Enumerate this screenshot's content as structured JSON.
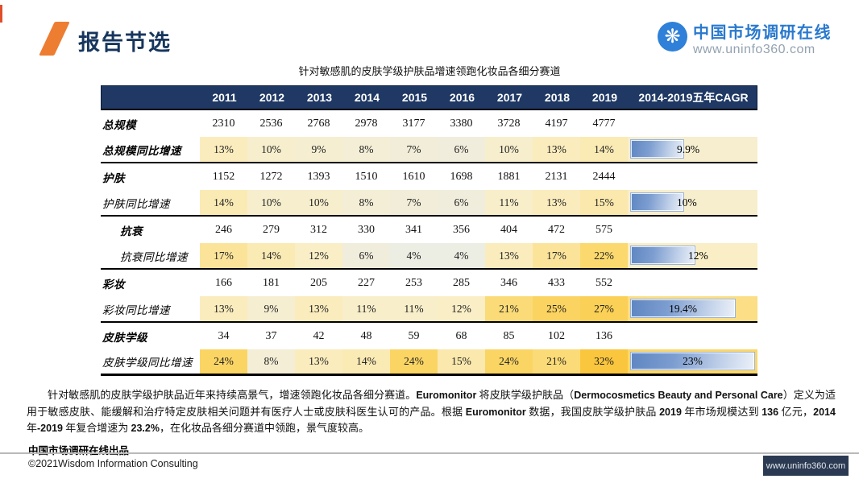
{
  "page": {
    "slide_title": "报告节选",
    "table_caption": "针对敏感肌的皮肤学级护肤品增速领跑化妆品各细分赛道"
  },
  "brand": {
    "name": "中国市场调研在线",
    "url": "www.uninfo360.com",
    "logo_icon": "compass-star-icon",
    "colors": {
      "brand_blue": "#2E80D8",
      "navy": "#1F3864",
      "orange": "#ED7D31"
    }
  },
  "table": {
    "header": {
      "year_columns": [
        "2011",
        "2012",
        "2013",
        "2014",
        "2015",
        "2016",
        "2017",
        "2018",
        "2019"
      ],
      "cagr_column": "2014-2019五年CAGR"
    },
    "cagr_scale_max": 23,
    "color_scale": {
      "anchors": [
        [
          4,
          "#ECEDE3"
        ],
        [
          12,
          "#FAEEC6"
        ],
        [
          22,
          "#FBD96E"
        ],
        [
          32,
          "#FAC63E"
        ]
      ]
    },
    "bar_colors": {
      "border": "#98B4DC",
      "fill_start": "#5E86C1",
      "fill_end": "#ECF1F9"
    },
    "rows": [
      {
        "label": "总规模",
        "bold": true,
        "indent": false,
        "kind": "value",
        "values": [
          "2310",
          "2536",
          "2768",
          "2978",
          "3177",
          "3380",
          "3728",
          "4197",
          "4777"
        ],
        "cagr": null,
        "group_end": false
      },
      {
        "label": "总规模同比增速",
        "bold": true,
        "indent": false,
        "kind": "pct",
        "values": [
          "13%",
          "10%",
          "9%",
          "8%",
          "7%",
          "6%",
          "10%",
          "13%",
          "14%"
        ],
        "cagr": {
          "label": "9.9%",
          "value": 9.9,
          "label_pos": "end"
        },
        "group_end": true
      },
      {
        "label": "护肤",
        "bold": true,
        "indent": false,
        "kind": "value",
        "values": [
          "1152",
          "1272",
          "1393",
          "1510",
          "1610",
          "1698",
          "1881",
          "2131",
          "2444"
        ],
        "cagr": null,
        "group_end": false
      },
      {
        "label": "护肤同比增速",
        "bold": false,
        "indent": false,
        "kind": "pct",
        "values": [
          "14%",
          "10%",
          "10%",
          "8%",
          "7%",
          "6%",
          "11%",
          "13%",
          "15%"
        ],
        "cagr": {
          "label": "10%",
          "value": 10,
          "label_pos": "end"
        },
        "group_end": true
      },
      {
        "label": "抗衰",
        "bold": true,
        "indent": true,
        "kind": "value",
        "values": [
          "246",
          "279",
          "312",
          "330",
          "341",
          "356",
          "404",
          "472",
          "575"
        ],
        "cagr": null,
        "group_end": false
      },
      {
        "label": "抗衰同比增速",
        "bold": false,
        "indent": true,
        "kind": "pct",
        "values": [
          "17%",
          "14%",
          "12%",
          "6%",
          "4%",
          "4%",
          "13%",
          "17%",
          "22%"
        ],
        "cagr": {
          "label": "12%",
          "value": 12,
          "label_pos": "end"
        },
        "group_end": true
      },
      {
        "label": "彩妆",
        "bold": true,
        "indent": false,
        "kind": "value",
        "values": [
          "166",
          "181",
          "205",
          "227",
          "253",
          "285",
          "346",
          "433",
          "552"
        ],
        "cagr": null,
        "group_end": false
      },
      {
        "label": "彩妆同比增速",
        "bold": false,
        "indent": false,
        "kind": "pct",
        "values": [
          "13%",
          "9%",
          "13%",
          "11%",
          "11%",
          "12%",
          "21%",
          "25%",
          "27%"
        ],
        "cagr": {
          "label": "19.4%",
          "value": 19.4,
          "label_pos": "center"
        },
        "group_end": true
      },
      {
        "label": "皮肤学级",
        "bold": true,
        "indent": false,
        "kind": "value",
        "values": [
          "34",
          "37",
          "42",
          "48",
          "59",
          "68",
          "85",
          "102",
          "136"
        ],
        "cagr": null,
        "group_end": false
      },
      {
        "label": "皮肤学级同比增速",
        "bold": false,
        "indent": false,
        "kind": "pct",
        "values": [
          "24%",
          "8%",
          "13%",
          "14%",
          "24%",
          "15%",
          "24%",
          "21%",
          "32%"
        ],
        "cagr": {
          "label": "23%",
          "value": 23,
          "label_pos": "center"
        },
        "group_end": true
      }
    ]
  },
  "paragraph": {
    "segments": [
      {
        "text": "针对敏感肌的皮肤学级护肤品近年来持续高景气，增速领跑化妆品各细分赛道。",
        "bold": false
      },
      {
        "text": "Euromonitor",
        "bold": true
      },
      {
        "text": " 将皮肤学级护肤品（",
        "bold": false
      },
      {
        "text": "Dermocosmetics Beauty and Personal Care",
        "bold": true
      },
      {
        "text": "）定义为适用于敏感皮肤、能缓解和治疗特定皮肤相关问题并有医疗人士或皮肤科医生认可的产品。根据 ",
        "bold": false
      },
      {
        "text": "Euromonitor",
        "bold": true
      },
      {
        "text": " 数据，我国皮肤学级护肤品 ",
        "bold": false
      },
      {
        "text": "2019",
        "bold": true
      },
      {
        "text": " 年市场规模达到 ",
        "bold": false
      },
      {
        "text": "136",
        "bold": true
      },
      {
        "text": " 亿元，",
        "bold": false
      },
      {
        "text": "2014",
        "bold": true
      },
      {
        "text": " 年",
        "bold": false
      },
      {
        "text": "-2019",
        "bold": true
      },
      {
        "text": " 年复合增速为 ",
        "bold": false
      },
      {
        "text": "23.2%",
        "bold": true
      },
      {
        "text": "，在化妆品各细分赛道中领跑，景气度较高。",
        "bold": false
      }
    ]
  },
  "footer": {
    "produced_by": "中国市场调研在线出品",
    "copyright": "©2021Wisdom Information Consulting",
    "site": "www.uninfo360.com"
  }
}
